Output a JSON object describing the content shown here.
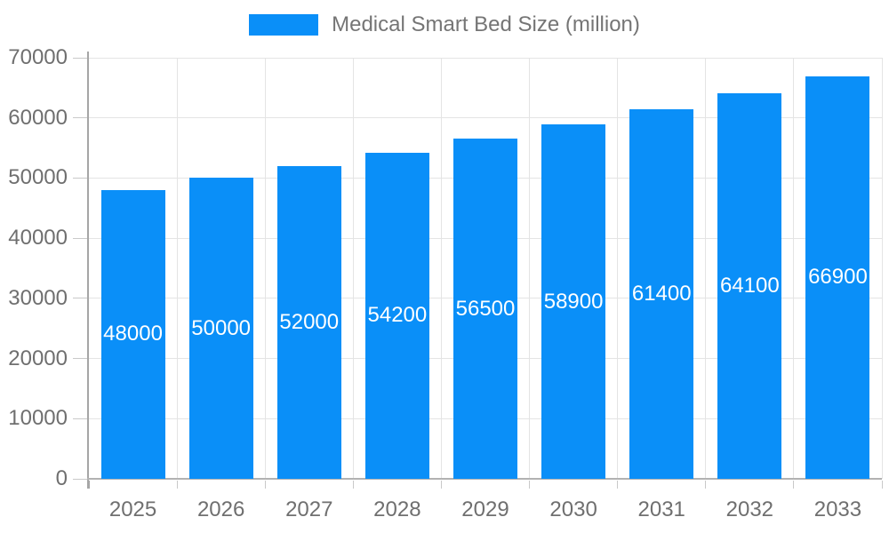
{
  "chart_data": {
    "type": "bar",
    "title": "Medical Smart Bed Size (million)",
    "legend": {
      "position": "top",
      "entries": [
        {
          "label": "Medical Smart Bed Size (million)",
          "color": "#0a8ff8"
        }
      ]
    },
    "categories": [
      "2025",
      "2026",
      "2027",
      "2028",
      "2029",
      "2030",
      "2031",
      "2032",
      "2033"
    ],
    "series": [
      {
        "name": "Medical Smart Bed Size (million)",
        "values": [
          48000,
          50000,
          52000,
          54200,
          56500,
          58900,
          61400,
          64100,
          66900
        ]
      }
    ],
    "value_labels": [
      "48000",
      "50000",
      "52000",
      "54200",
      "56500",
      "58900",
      "61400",
      "64100",
      "66900"
    ],
    "xlabel": "",
    "ylabel": "",
    "ylim": [
      0,
      70000
    ],
    "yticks": [
      0,
      10000,
      20000,
      30000,
      40000,
      50000,
      60000,
      70000
    ],
    "ytick_labels": [
      "0",
      "10000",
      "20000",
      "30000",
      "40000",
      "50000",
      "60000",
      "70000"
    ],
    "grid": true,
    "colors": {
      "bar": "#0a8ff8",
      "value_label": "#ffffff",
      "axis_text": "#6f6f6f",
      "legend_text": "#757575",
      "gridline": "#e4e4e4",
      "axis_line": "#a6a6a6",
      "tick": "#c9c9c9",
      "background": "#ffffff"
    }
  }
}
